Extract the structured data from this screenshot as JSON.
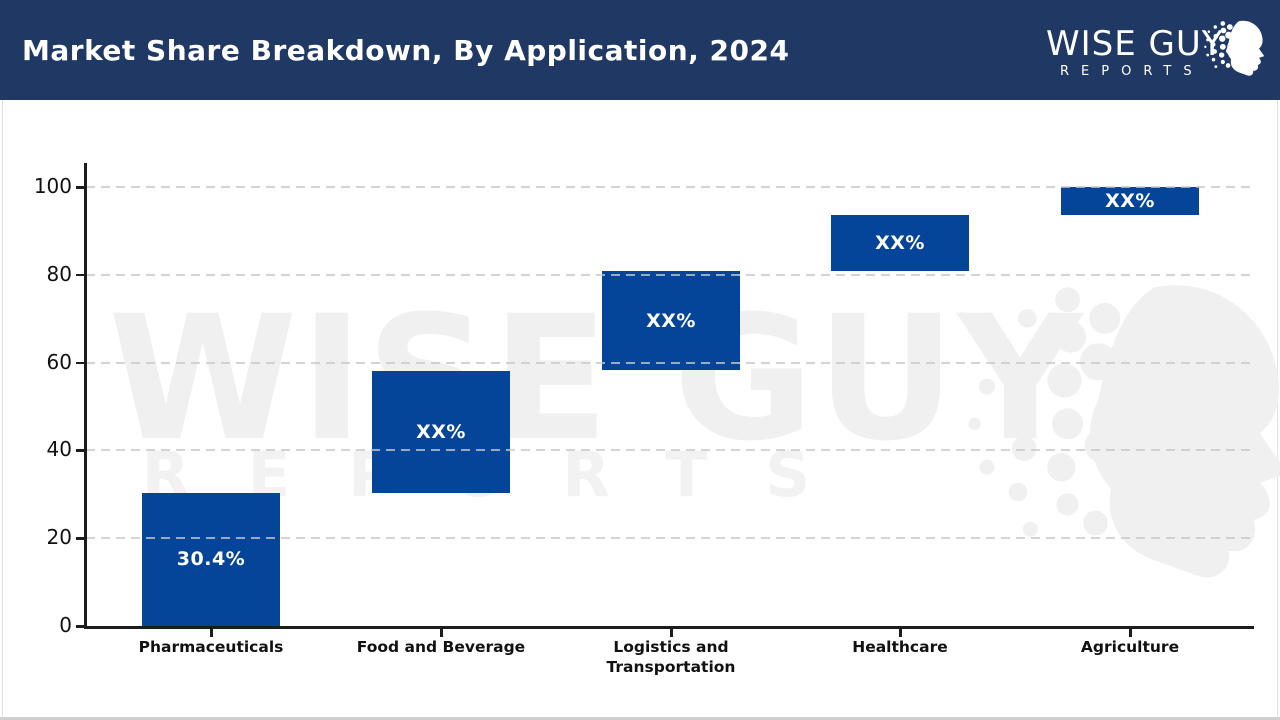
{
  "header": {
    "title": "Market Share Breakdown, By Application, 2024",
    "logo": {
      "line1": "WISE GUY",
      "line2": "REPORTS"
    }
  },
  "watermark": {
    "line1": "WISE GUY",
    "line2": "REPORTS"
  },
  "chart_data": {
    "type": "bar",
    "subtype": "floating-waterfall",
    "title": "Market Share Breakdown, By Application, 2024",
    "categories": [
      "Pharmaceuticals",
      "Food and Beverage",
      "Logistics and Transportation",
      "Healthcare",
      "Agriculture"
    ],
    "segments": [
      {
        "category": "Pharmaceuticals",
        "value_label": "30.4%",
        "start": 0,
        "end": 30.4
      },
      {
        "category": "Food and Beverage",
        "value_label": "XX%",
        "start": 30.4,
        "end": 58.2
      },
      {
        "category": "Logistics and Transportation",
        "value_label": "XX%",
        "start": 58.2,
        "end": 80.8
      },
      {
        "category": "Healthcare",
        "value_label": "XX%",
        "start": 80.8,
        "end": 93.6
      },
      {
        "category": "Agriculture",
        "value_label": "XX%",
        "start": 93.6,
        "end": 100
      }
    ],
    "ylim": [
      0,
      100
    ],
    "yticks": [
      0,
      20,
      40,
      60,
      80,
      100
    ],
    "xlabel": "",
    "ylabel": "",
    "grid": "horizontal-dashed",
    "legend": null,
    "bar_color": "#04459A"
  },
  "colors": {
    "header_bg": "#1F3864",
    "bar": "#04459A",
    "axis": "#1c1c1c",
    "gridline": "#d9d9d9",
    "watermark": "#f0f0f0"
  }
}
